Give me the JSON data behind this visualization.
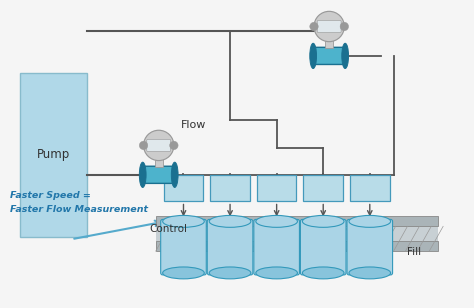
{
  "bg_color": "#f5f5f5",
  "light_blue": "#aad4e6",
  "teal": "#3399bb",
  "dark_teal": "#1a7090",
  "teal_body": "#4db3cc",
  "gray": "#999999",
  "light_gray": "#cccccc",
  "box_fill": "#b8dce8",
  "box_edge": "#4499bb",
  "pump_fill": "#b0d8e8",
  "pump_edge": "#88bbcc",
  "conveyor_fill": "#aab4b8",
  "conveyor_edge": "#888888",
  "hatch_fill": "#c8d0d4",
  "pipe_color": "#555555",
  "text_color": "#333333",
  "speed_text_color": "#2277aa",
  "arrow_color": "#55aacc",
  "pump_label": "Pump",
  "flow_label": "Flow",
  "control_label": "Control",
  "fill_label": "Fill",
  "speed_line1": "Faster Speed =",
  "speed_line2": "Faster Flow Measurement",
  "fig_width": 4.74,
  "fig_height": 3.08,
  "dpi": 100
}
